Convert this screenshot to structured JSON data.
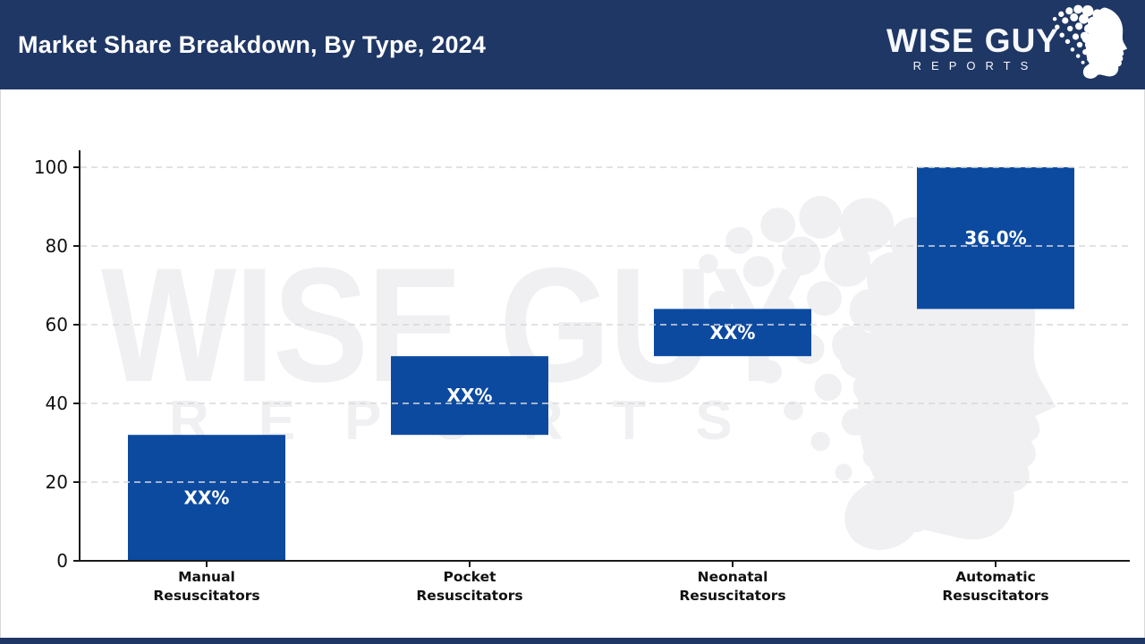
{
  "header": {
    "title": "Market Share Breakdown, By Type, 2024",
    "logo_line1": "WISE GUY",
    "logo_line2": "REPORTS"
  },
  "watermark": {
    "line1": "WISE GUY",
    "line2": "REPORTS"
  },
  "chart_data": {
    "type": "bar",
    "subtype": "waterfall",
    "title": "Market Share Breakdown, By Type, 2024",
    "categories": [
      "Manual Resuscitators",
      "Pocket Resuscitators",
      "Neonatal Resuscitators",
      "Automatic Resuscitators"
    ],
    "category_label_lines": [
      [
        "Manual",
        "Resuscitators"
      ],
      [
        "Pocket",
        "Resuscitators"
      ],
      [
        "Neonatal",
        "Resuscitators"
      ],
      [
        "Automatic",
        "Resuscitators"
      ]
    ],
    "bars": [
      {
        "category": "Manual Resuscitators",
        "start": 0,
        "end": 32,
        "value_label": "XX%"
      },
      {
        "category": "Pocket Resuscitators",
        "start": 32,
        "end": 52,
        "value_label": "XX%"
      },
      {
        "category": "Neonatal Resuscitators",
        "start": 52,
        "end": 64,
        "value_label": "XX%"
      },
      {
        "category": "Automatic Resuscitators",
        "start": 64,
        "end": 100,
        "value_label": "36.0%"
      }
    ],
    "yticks": [
      0,
      20,
      40,
      60,
      80,
      100
    ],
    "ylim": [
      0,
      105
    ],
    "xlabel": "",
    "ylabel": "",
    "legend": "none",
    "grid": "horizontal-dashed"
  },
  "colors": {
    "header_bg": "#1F3765",
    "footer_bg": "#1F3765",
    "bar": "#0C4AA0",
    "bar_label_text": "#FFFFFF",
    "gridline": "#D8D8D8",
    "axis": "#1A1A1A",
    "tick_label_text": "#111111",
    "category_label_text": "#111111",
    "title_text": "#FFFFFF",
    "watermark": "#F0F0F3",
    "logo_text": "#F6F8FB"
  }
}
